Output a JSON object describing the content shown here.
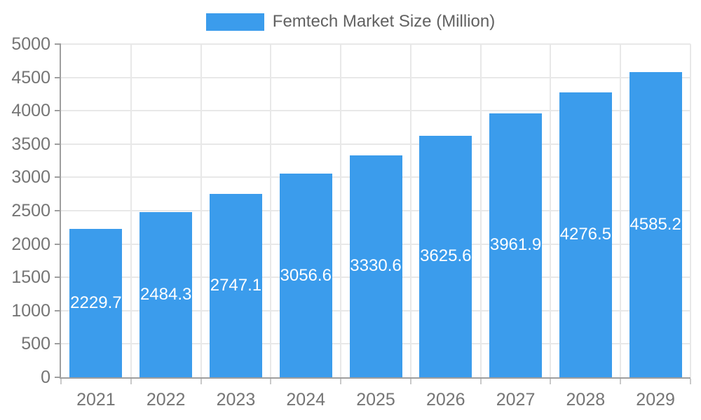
{
  "chart_data": {
    "type": "bar",
    "title": "Femtech Market Size (Million)",
    "categories": [
      "2021",
      "2022",
      "2023",
      "2024",
      "2025",
      "2026",
      "2027",
      "2028",
      "2029"
    ],
    "values": [
      2229.7,
      2484.3,
      2747.1,
      3056.6,
      3330.6,
      3625.6,
      3961.9,
      4276.5,
      4585.2
    ],
    "yticks": [
      0,
      500,
      1000,
      1500,
      2000,
      2500,
      3000,
      3500,
      4000,
      4500,
      5000
    ],
    "ylim": [
      0,
      5000
    ],
    "xlabel": "",
    "ylabel": "",
    "grid": true,
    "legend_position": "top-center",
    "value_labels": "inside-center",
    "bar_color": "#3B9CEC",
    "value_label_color": "#FFFFFF"
  }
}
